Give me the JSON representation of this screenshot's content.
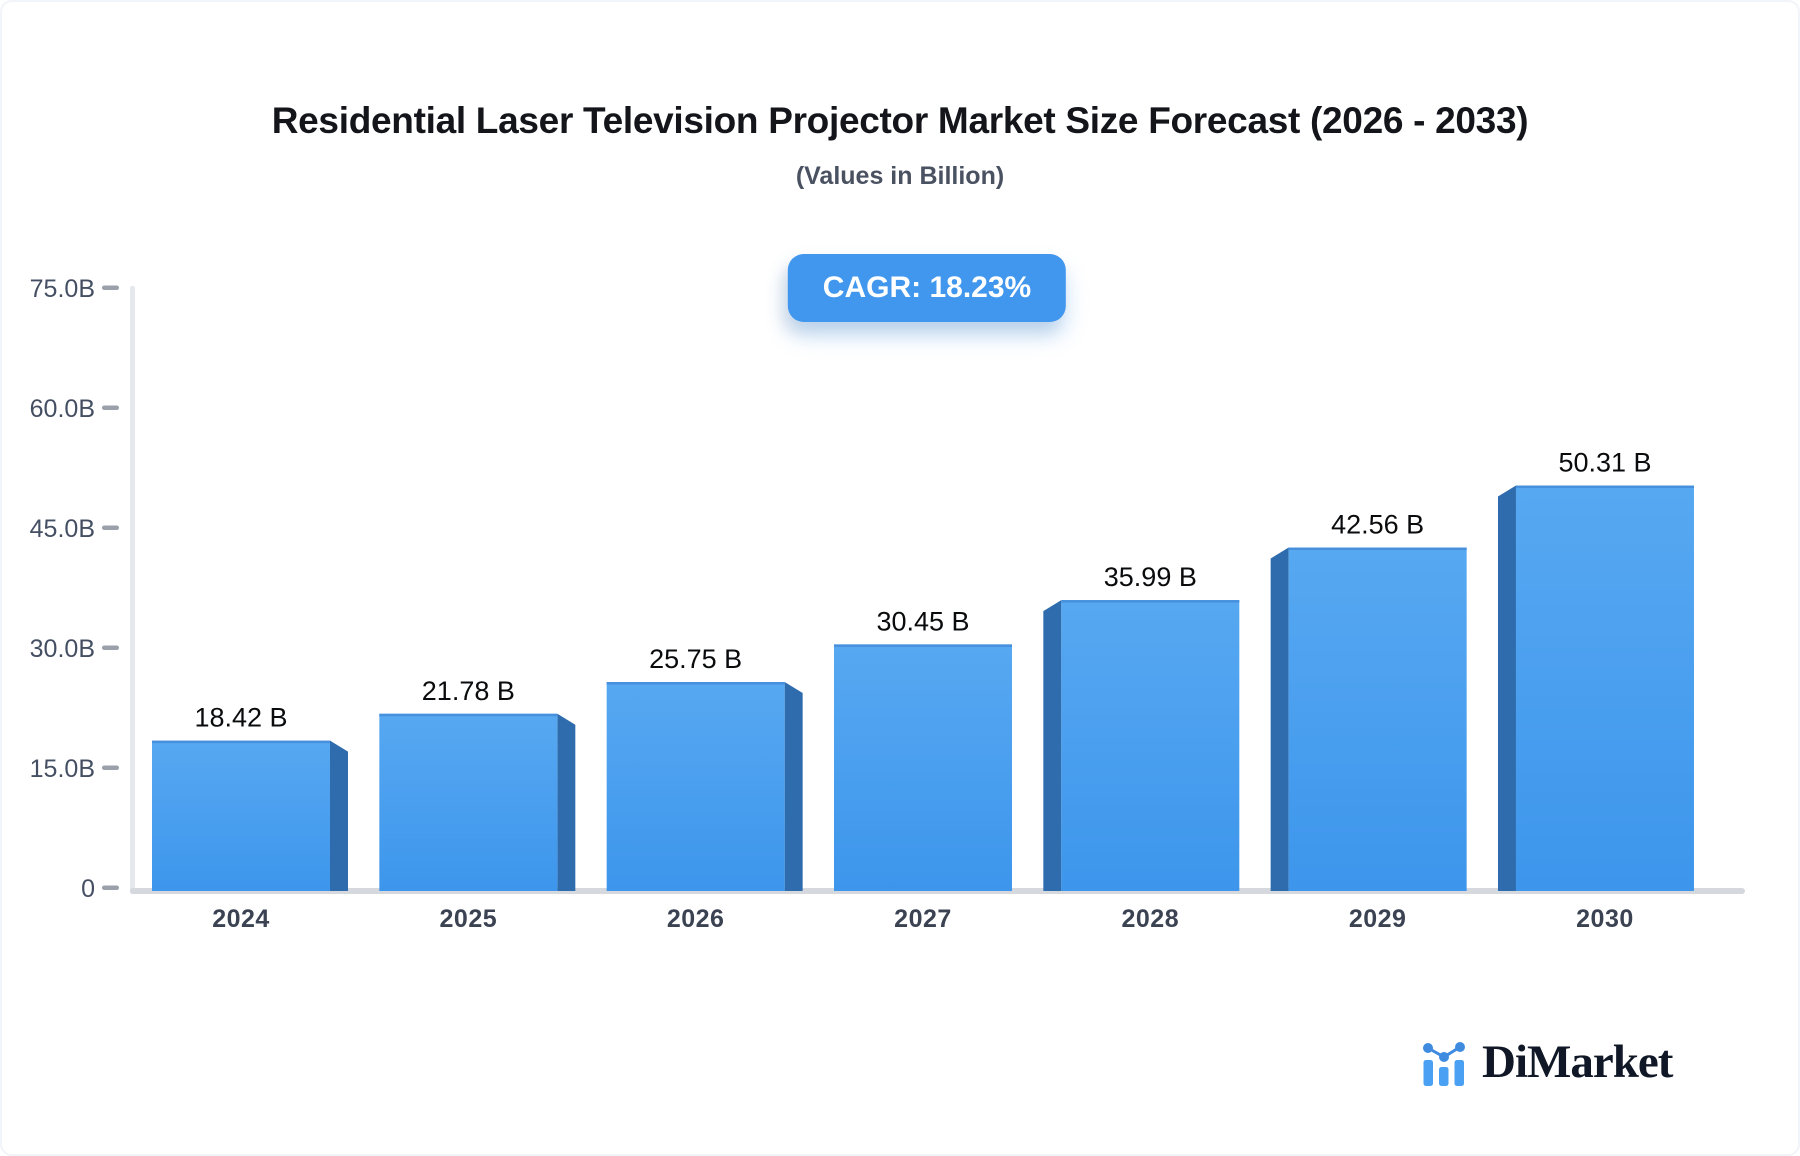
{
  "chart_data": {
    "type": "bar",
    "title": "Residential Laser Television Projector Market Size Forecast (2026 - 2033)",
    "subtitle": "(Values in Billion)",
    "annotation": "CAGR: 18.23%",
    "categories": [
      "2024",
      "2025",
      "2026",
      "2027",
      "2028",
      "2029",
      "2030"
    ],
    "values": [
      18.42,
      21.78,
      25.75,
      30.45,
      35.99,
      42.56,
      50.31
    ],
    "value_labels": [
      "18.42 B",
      "21.78 B",
      "25.75 B",
      "30.45 B",
      "35.99 B",
      "42.56 B",
      "50.31 B"
    ],
    "unit": "Billion",
    "ylim": [
      0,
      75
    ],
    "y_ticks": [
      {
        "v": 75,
        "label": "75.0B"
      },
      {
        "v": 60,
        "label": "60.0B"
      },
      {
        "v": 45,
        "label": "45.0B"
      },
      {
        "v": 30,
        "label": "30.0B"
      },
      {
        "v": 15,
        "label": "15.0B"
      },
      {
        "v": 0,
        "label": "0"
      }
    ],
    "grid": false,
    "legend": false,
    "style": "3d-bars-center-perspective"
  },
  "brand": {
    "name": "DiMarket"
  },
  "colors": {
    "bar_front_top": "#57a8f1",
    "bar_front_bottom": "#3d96ec",
    "bar_top_edge": "#4690dd",
    "bar_side": "#2e6cad",
    "badge_bg": "#4197ed",
    "badge_text": "#ffffff",
    "axis_line": "#e5e8ec",
    "baseline": "#d5d8dd",
    "tick": "#9aa1ab",
    "tick_label": "#454f63",
    "year_label": "#3b4353",
    "value_label": "#0a0b0d",
    "title": "#13151a",
    "subtitle": "#4a5262",
    "logo_bar_blue": "#4aa0f2",
    "logo_dot_blue": "#3e8bdf",
    "logo_text": "#101726"
  }
}
